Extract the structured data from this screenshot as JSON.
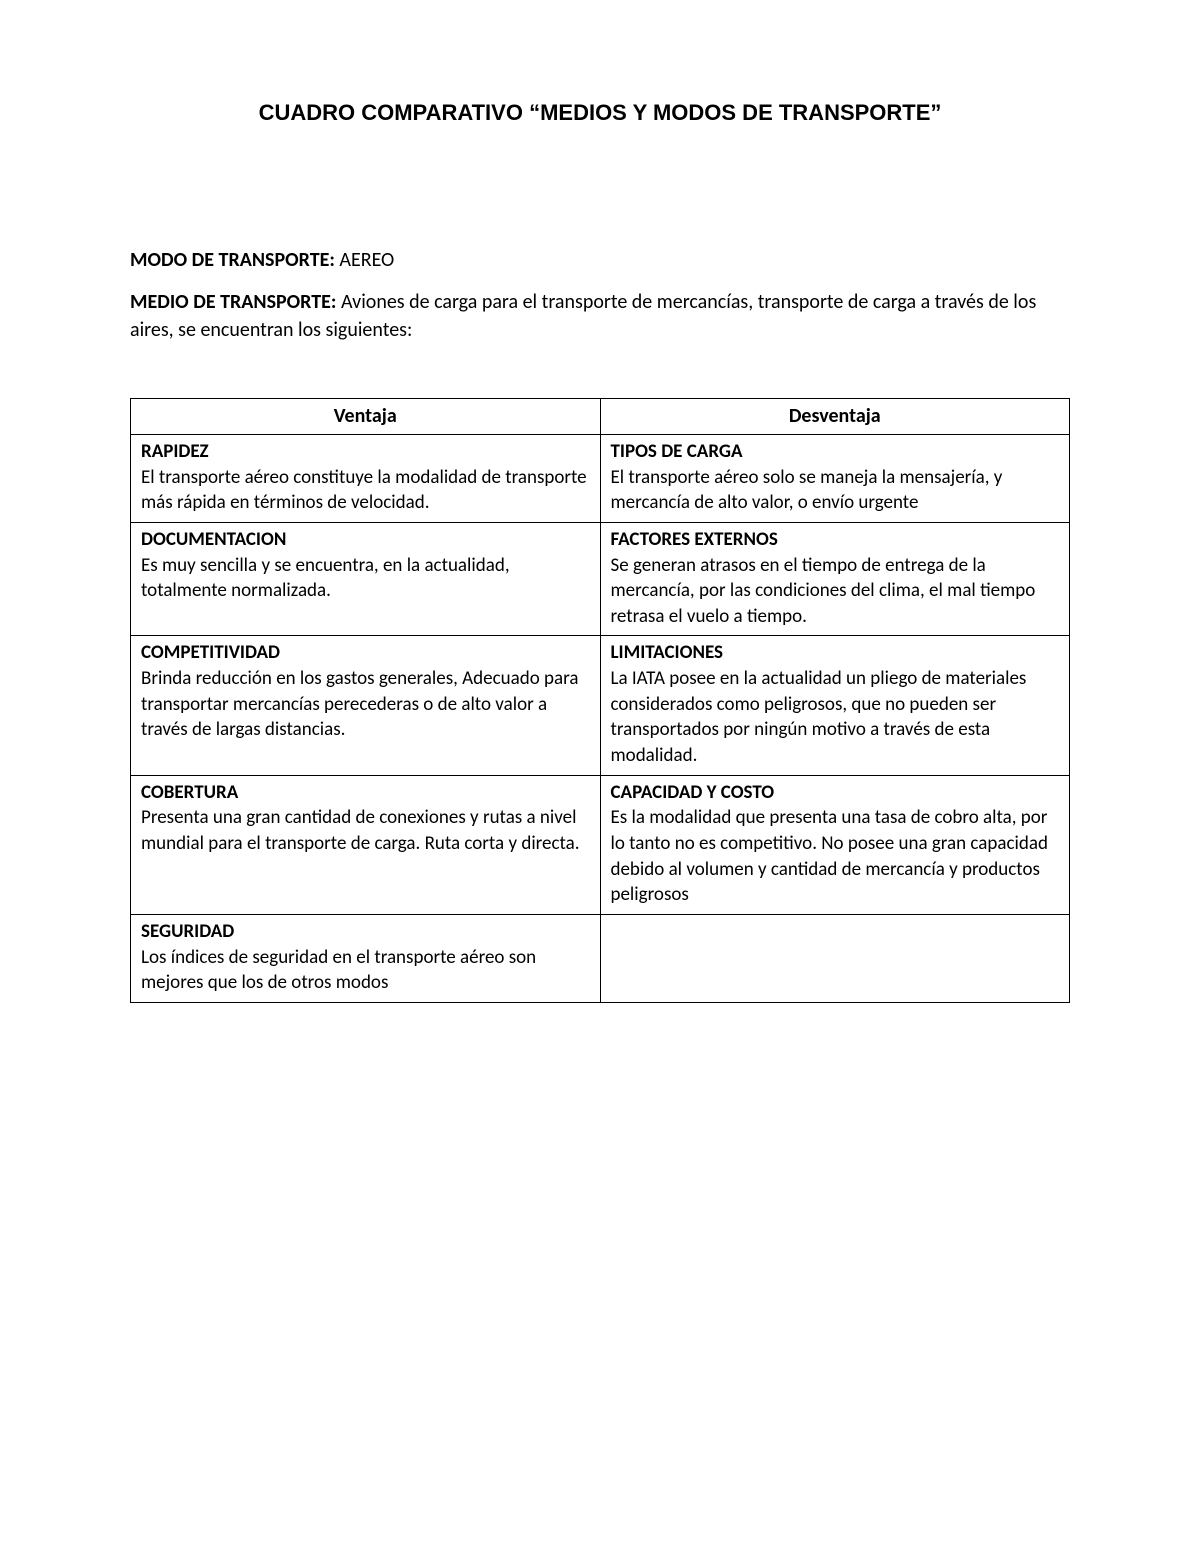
{
  "title": "CUADRO COMPARATIVO “MEDIOS Y MODOS DE TRANSPORTE”",
  "modo": {
    "label": "MODO DE TRANSPORTE:",
    "value": " AEREO"
  },
  "medio": {
    "label": "MEDIO DE TRANSPORTE:",
    "value": " Aviones de carga para el transporte de mercancías, transporte de carga a través de los aires, se encuentran los siguientes:"
  },
  "table": {
    "headers": {
      "ventaja": "Ventaja",
      "desventaja": "Desventaja"
    },
    "rows": [
      {
        "v_title": "RAPIDEZ",
        "v_body": "El transporte aéreo constituye la modalidad de transporte más rápida en términos de velocidad.",
        "d_title": "TIPOS DE CARGA",
        "d_body": "El transporte aéreo solo se maneja la mensajería, y mercancía de alto valor, o envío urgente"
      },
      {
        "v_title": "DOCUMENTACION",
        "v_body": "Es muy sencilla y se encuentra, en la actualidad, totalmente normalizada.",
        "d_title": "FACTORES EXTERNOS",
        "d_body": "Se generan atrasos en el tiempo de entrega de la mercancía, por las condiciones del clima, el mal tiempo retrasa el vuelo a tiempo."
      },
      {
        "v_title": "COMPETITIVIDAD",
        "v_body": "Brinda reducción en los gastos generales, Adecuado para transportar mercancías perecederas o de alto valor a través de largas distancias.",
        "d_title": "LIMITACIONES",
        "d_body": "La IATA posee en la actualidad un pliego de materiales  considerados como peligrosos, que no pueden ser transportados por ningún motivo a través de esta modalidad."
      },
      {
        "v_title": "COBERTURA",
        "v_body": "Presenta una gran cantidad de conexiones y rutas a nivel mundial para el transporte de carga. Ruta corta y directa.",
        "d_title": "CAPACIDAD Y COSTO",
        "d_body": "Es la modalidad que presenta una tasa de cobro alta, por lo tanto no es competitivo. No posee una gran capacidad debido al volumen y cantidad de mercancía y productos peligrosos"
      },
      {
        "v_title": "SEGURIDAD",
        "v_body": "Los índices de seguridad en el transporte aéreo son  mejores que los de otros modos",
        "d_title": "",
        "d_body": ""
      }
    ]
  }
}
